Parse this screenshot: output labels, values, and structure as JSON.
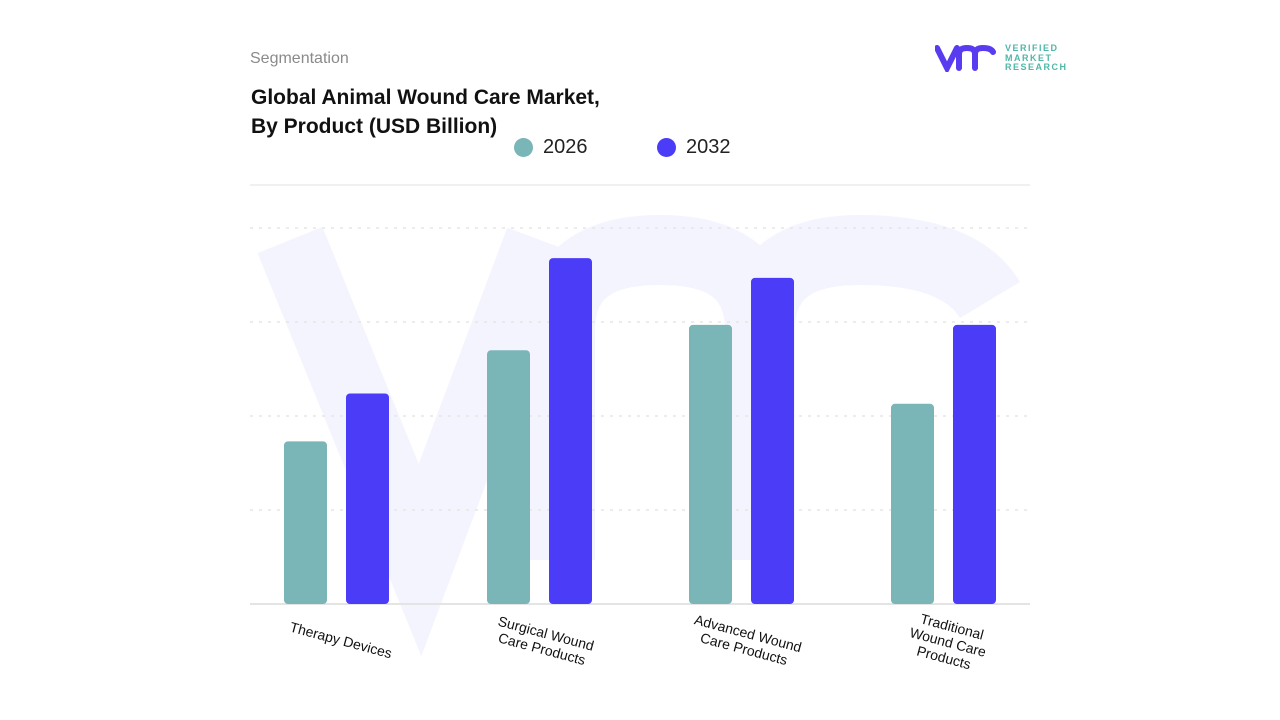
{
  "header": {
    "segment_label": "Segmentation",
    "title_line1": "Global Animal Wound Care Market,",
    "title_line2": "By Product (USD Billion)"
  },
  "logo": {
    "text_line1": "VERIFIED",
    "text_line2": "MARKET",
    "text_line3": "RESEARCH"
  },
  "chart_data": {
    "type": "bar",
    "title": "Global Animal Wound Care Market, By Product (USD Billion)",
    "categories": [
      "Therapy Devices",
      "Surgical Wound Care Products",
      "Advanced Wound Care Products",
      "Traditional Wound Care Products"
    ],
    "series": [
      {
        "name": "2026",
        "color": "#7ab5b8",
        "values": [
          1.73,
          2.7,
          2.97,
          2.13
        ]
      },
      {
        "name": "2032",
        "color": "#4b3cf7",
        "values": [
          2.24,
          3.68,
          3.47,
          2.97
        ]
      }
    ],
    "ylim": [
      0,
      4
    ],
    "grid": true,
    "legend": "top-center",
    "xlabel": "",
    "ylabel": ""
  }
}
